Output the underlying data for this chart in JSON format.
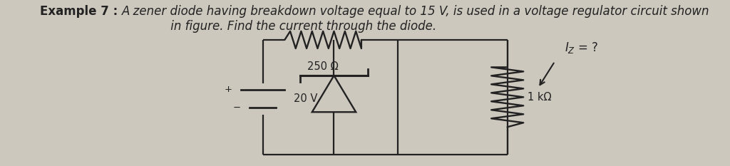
{
  "background_color": "#cdc8be",
  "title_bold": "Example 7 :",
  "title_text": "A zener diode having breakdown voltage equal to 15 V, is used in a voltage regulator circuit shown\n             in figure. Find the current through the diode.",
  "resistor_series_label": "250 Ω",
  "battery_label": "20 V",
  "resistor_load_label": "1 kΩ",
  "iz_label": "I",
  "iz_sub": "Z",
  "iz_suffix": " = ?",
  "text_color": "#222222",
  "font_size_title": 12,
  "font_size_labels": 10.5,
  "circuit": {
    "xl": 0.36,
    "xr": 0.695,
    "yt": 0.76,
    "yb": 0.07,
    "xmid": 0.545
  }
}
